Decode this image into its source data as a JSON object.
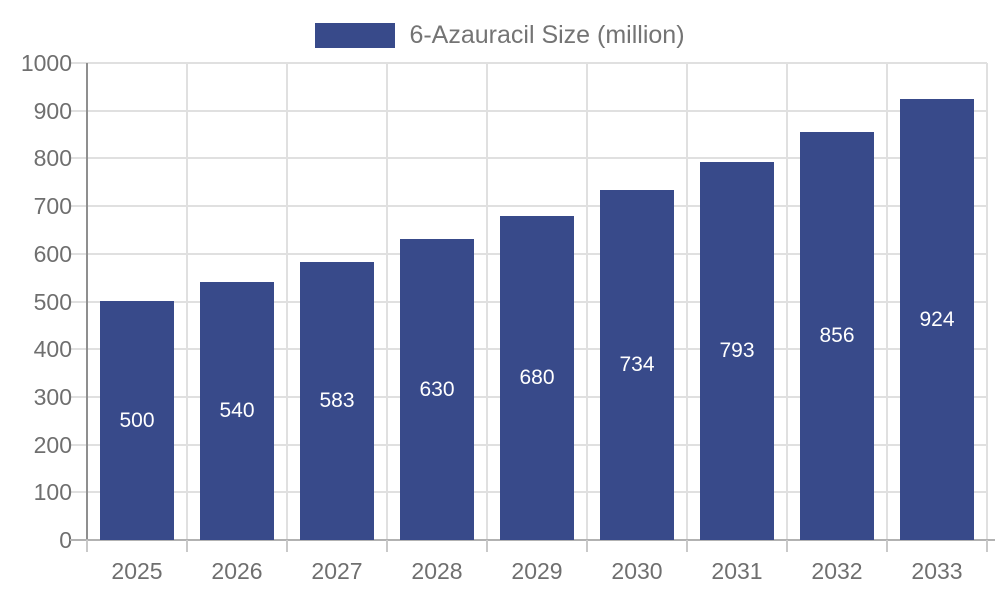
{
  "legend": {
    "label": "6-Azauracil Size (million)"
  },
  "colors": {
    "bar": "#384A8A",
    "grid": "#e0e0e0",
    "axis_y": "#8f8f8f",
    "axis_x": "#b2b2b2",
    "tick": "#c9c9c9",
    "text": "#6f6f6f",
    "legend_text": "#747474",
    "value_text": "#ffffff",
    "background": "#ffffff"
  },
  "chart_data": {
    "type": "bar",
    "title": "",
    "legend_label": "6-Azauracil Size (million)",
    "categories": [
      "2025",
      "2026",
      "2027",
      "2028",
      "2029",
      "2030",
      "2031",
      "2032",
      "2033"
    ],
    "values": [
      500,
      540,
      583,
      630,
      680,
      734,
      793,
      856,
      924
    ],
    "xlabel": "",
    "ylabel": "",
    "ylim": [
      0,
      1000
    ],
    "yticks": [
      0,
      100,
      200,
      300,
      400,
      500,
      600,
      700,
      800,
      900,
      1000
    ],
    "grid": true,
    "legend_position": "top-center",
    "value_labels": "inside-center"
  }
}
